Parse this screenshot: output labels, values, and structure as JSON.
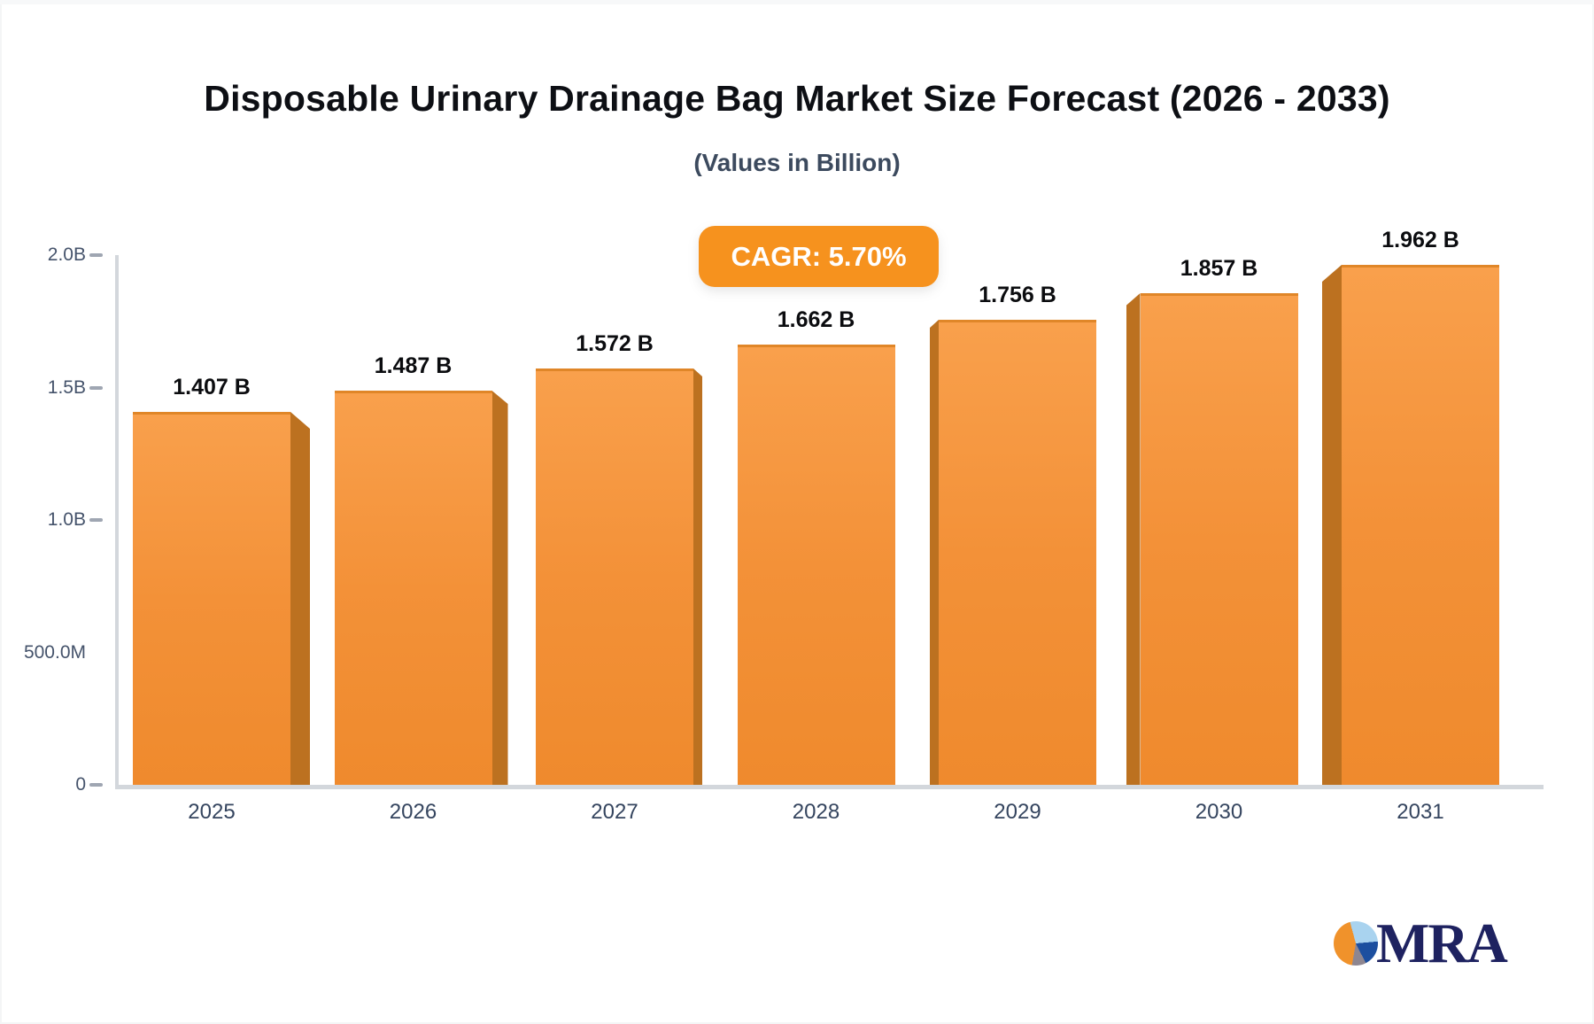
{
  "title": "Disposable Urinary Drainage Bag Market Size Forecast (2026 - 2033)",
  "subtitle": "(Values in Billion)",
  "cagr_badge": "CAGR: 5.70%",
  "logo": {
    "text": "MRA"
  },
  "colors": {
    "title": "#0d0f14",
    "subtitle": "#3c4a5e",
    "badge_bg": "#f6921e",
    "badge_text": "#ffffff",
    "bar_face_top": "#f9a04c",
    "bar_face_bottom": "#ef8a2d",
    "bar_side": "#bc7120",
    "bar_top_edge": "#e08628",
    "axis_line": "#d3d7dc",
    "tick_dash": "#9fa6b2",
    "y_label": "#45536b",
    "x_label": "#35455f",
    "value_label": "#0b0c0f",
    "logo_navy": "#1e2260",
    "logo_pie_orange": "#f0922b",
    "logo_pie_lightblue": "#a9d3ef",
    "logo_pie_blue": "#1c4f9f",
    "logo_pie_gray": "#8e8690"
  },
  "chart_data": {
    "type": "bar",
    "title": "Disposable Urinary Drainage Bag Market Size Forecast (2026 - 2033)",
    "subtitle": "(Values in Billion)",
    "categories": [
      "2025",
      "2026",
      "2027",
      "2028",
      "2029",
      "2030",
      "2031"
    ],
    "values": [
      1.407,
      1.487,
      1.572,
      1.662,
      1.756,
      1.857,
      1.962
    ],
    "value_labels": [
      "1.407 B",
      "1.487 B",
      "1.572 B",
      "1.662 B",
      "1.756 B",
      "1.857 B",
      "1.962 B"
    ],
    "unit": "Billion USD",
    "annotation": "CAGR: 5.70%",
    "xlabel": "",
    "ylabel": "",
    "ylim": [
      0,
      2.0
    ],
    "grid": false,
    "legend": false,
    "bar_style": "3d-perspective-orange",
    "y_axis_ticks": [
      {
        "label": "2.0B",
        "value": 2.0,
        "dash": true
      },
      {
        "label": "1.5B",
        "value": 1.5,
        "dash": true
      },
      {
        "label": "1.0B",
        "value": 1.0,
        "dash": true
      },
      {
        "label": "500.0M",
        "value": 0.5,
        "dash": false
      },
      {
        "label": "0",
        "value": 0.0,
        "dash": true
      }
    ]
  }
}
